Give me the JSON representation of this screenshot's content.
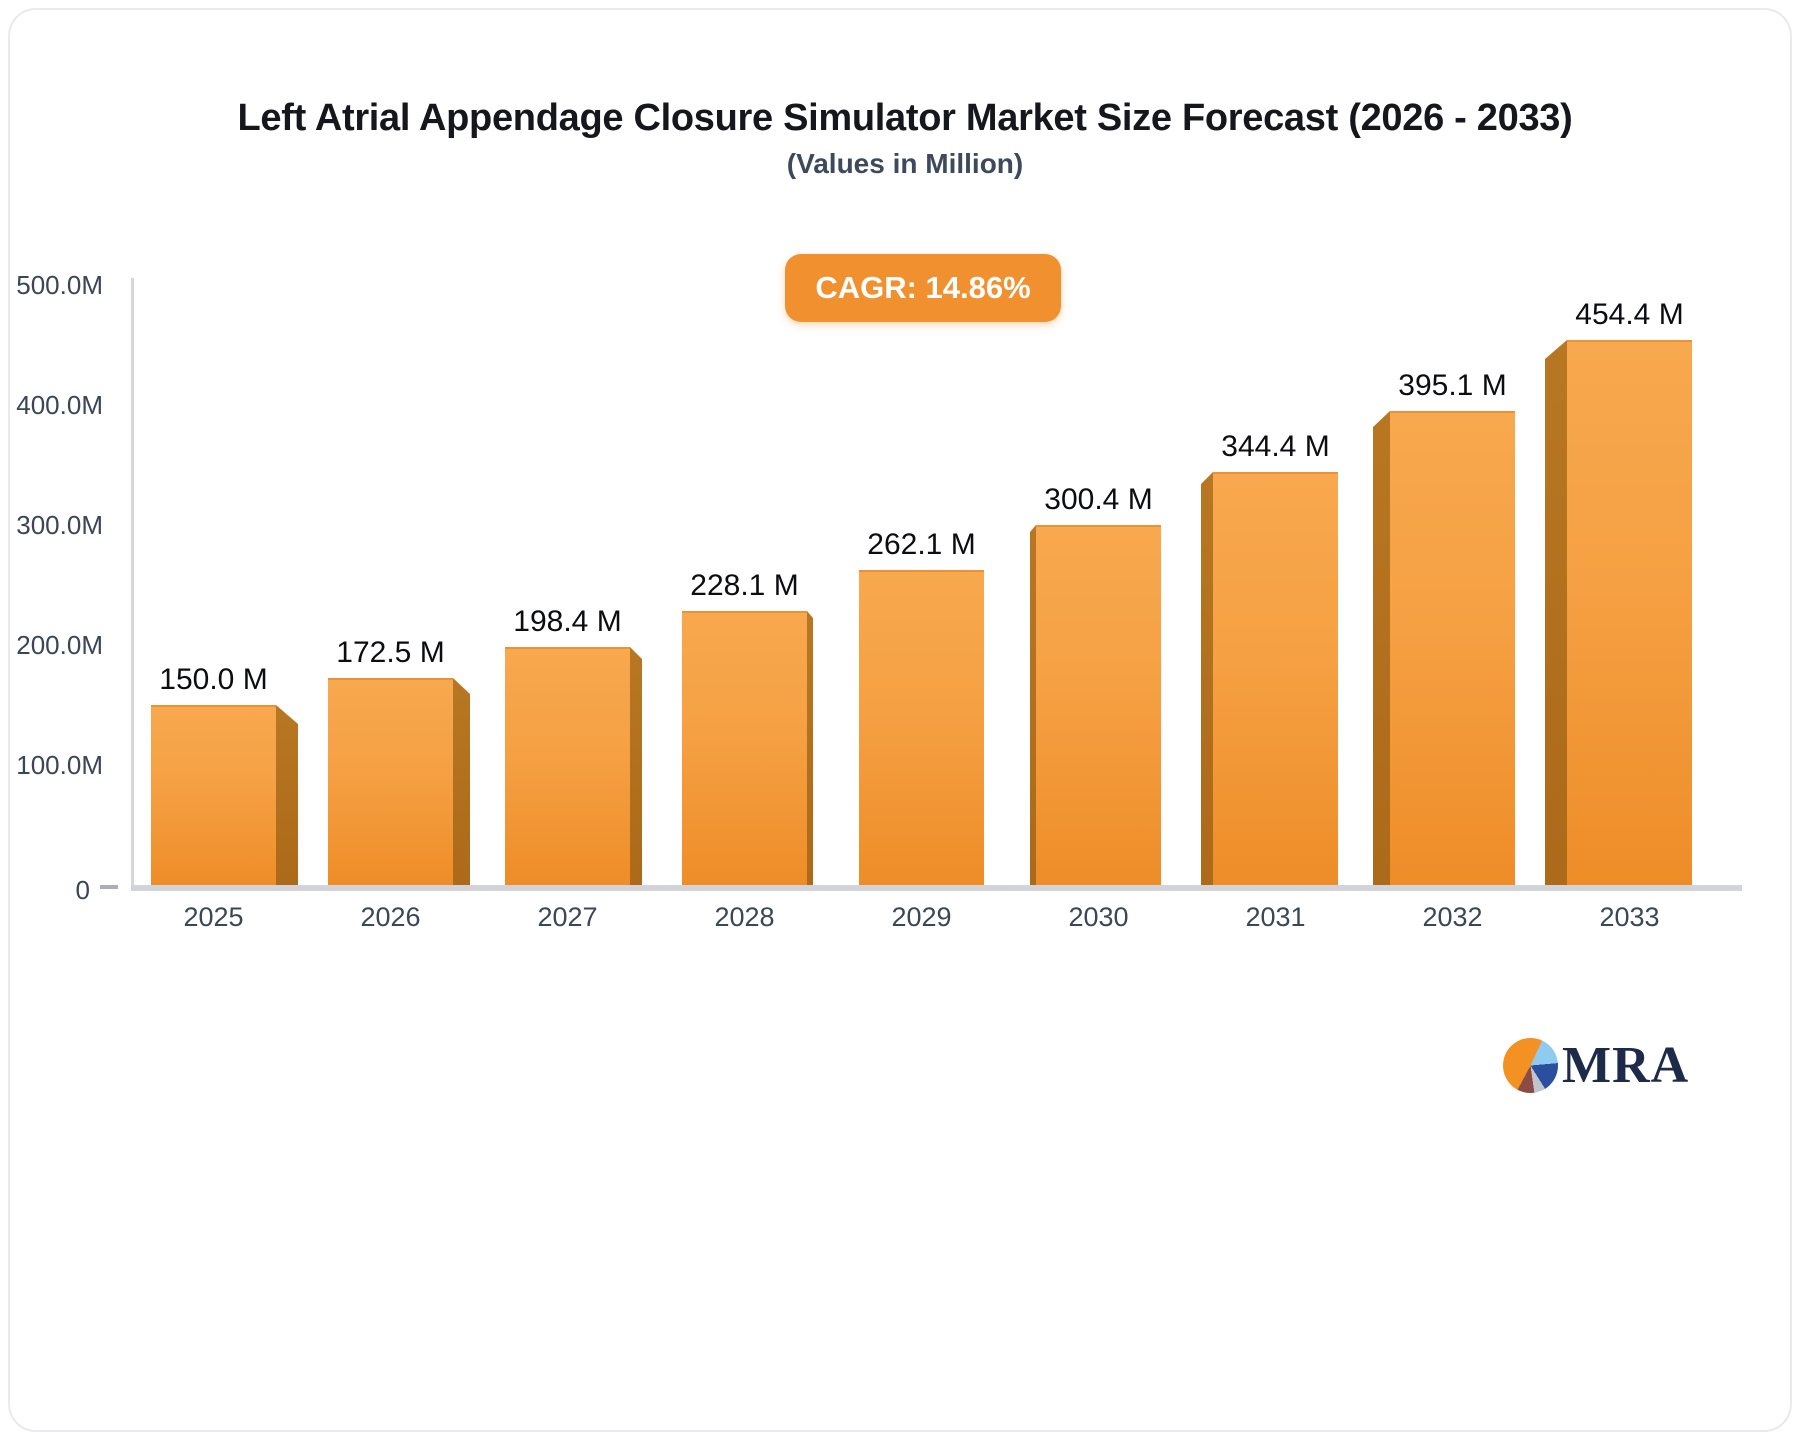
{
  "title": "Left Atrial Appendage Closure Simulator Market Size Forecast (2026 - 2033)",
  "subtitle": "(Values in Million)",
  "cagr_badge": "CAGR: 14.86%",
  "logo": {
    "text": "MRA",
    "icon": "pie-chart-icon"
  },
  "colors": {
    "bar_top": "#F8A84E",
    "bar_bottom": "#EE8D28",
    "bar_side": "#AC6A1A",
    "badge": "#F1902E",
    "axis": "#D2D4DA",
    "label_text": "#3B4757",
    "value_text": "#0B0D11",
    "logo_navy": "#1E2A4A"
  },
  "chart_data": {
    "type": "bar",
    "title": "Left Atrial Appendage Closure Simulator Market Size Forecast (2026 - 2033)",
    "subtitle": "(Values in Million)",
    "categories": [
      "2025",
      "2026",
      "2027",
      "2028",
      "2029",
      "2030",
      "2031",
      "2032",
      "2033"
    ],
    "values": [
      150.0,
      172.5,
      198.4,
      228.1,
      262.1,
      300.4,
      344.4,
      395.1,
      454.4
    ],
    "value_labels": [
      "150.0 M",
      "172.5 M",
      "198.4 M",
      "228.1 M",
      "262.1 M",
      "300.4 M",
      "344.4 M",
      "395.1 M",
      "454.4 M"
    ],
    "y_ticks": [
      {
        "label": "500.0M",
        "value": 500
      },
      {
        "label": "400.0M",
        "value": 400
      },
      {
        "label": "300.0M",
        "value": 300
      },
      {
        "label": "200.0M",
        "value": 200
      },
      {
        "label": "100.0M",
        "value": 100
      },
      {
        "label": "0",
        "value": 0
      }
    ],
    "xlabel": "",
    "ylabel": "",
    "ylim": [
      0,
      500
    ],
    "grid": false,
    "legend_position": "none",
    "annotation": "CAGR: 14.86%",
    "style": "pseudo-3d bars, orange gradient, perspective side faces toward chart center"
  }
}
